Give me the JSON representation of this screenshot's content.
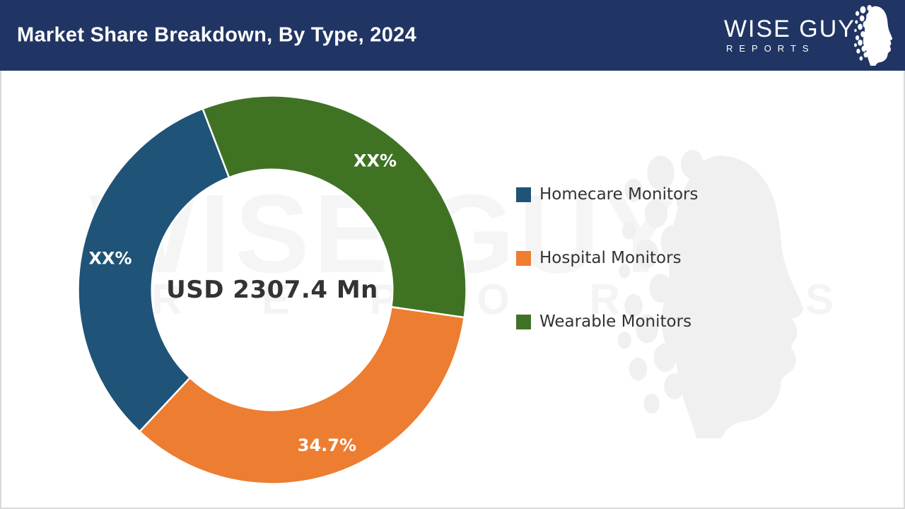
{
  "header": {
    "title": "Market Share Breakdown, By Type, 2024",
    "bg_color": "#213564",
    "logo": {
      "name": "WISE GUY",
      "sub": "REPORTS"
    }
  },
  "watermark": {
    "line1": "WISE GUY",
    "line2": "R E P O R T S"
  },
  "chart_data": {
    "type": "pie",
    "subtype": "donut",
    "title": "Market Share Breakdown, By Type, 2024",
    "center_label": "USD 2307.4 Mn",
    "unit": "percent share",
    "start_angle_deg_from_top": -21,
    "direction": "counterclockwise",
    "inner_radius_ratio": 0.62,
    "label_radius_ratio": 0.85,
    "legend_position": "right",
    "slices": [
      {
        "name": "Homecare Monitors",
        "value_pct": 32.2,
        "display_label": "XX%",
        "color": "#1F5377"
      },
      {
        "name": "Hospital Monitors",
        "value_pct": 34.7,
        "display_label": "34.7%",
        "color": "#ED7D31"
      },
      {
        "name": "Wearable Monitors",
        "value_pct": 33.1,
        "display_label": "XX%",
        "color": "#3F7323"
      }
    ]
  },
  "colors": {
    "header_bg": "#213564",
    "center_text": "#333333",
    "legend_text": "#333333",
    "slice_label_text": "#FFFFFF",
    "frame_border": "#D9D9D9",
    "watermark": "#F2F2F2"
  }
}
